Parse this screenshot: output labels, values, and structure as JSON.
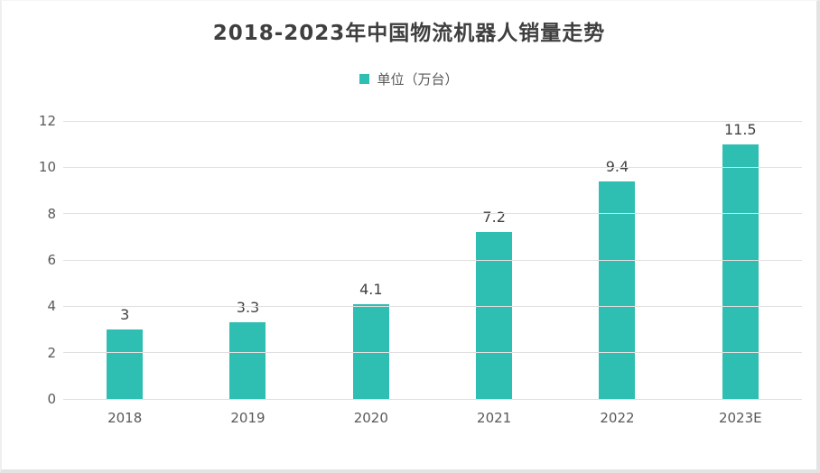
{
  "title": "2018-2023年中国物流机器人销量走势",
  "legend": {
    "label": "单位（万台）",
    "swatch_color": "#2FBEB2"
  },
  "colors": {
    "bar": "#2FBEB2",
    "grid": "#e0e0e0",
    "title_text": "#3f3f3f",
    "axis_text": "#595959",
    "value_label_text": "#404040"
  },
  "chart_data": {
    "type": "bar",
    "title": "2018-2023年中国物流机器人销量走势",
    "legend_entries": [
      "单位（万台）"
    ],
    "legend_position": "top-center",
    "categories": [
      "2018",
      "2019",
      "2020",
      "2021",
      "2022",
      "2023E"
    ],
    "values": [
      3,
      3.3,
      4.1,
      7.2,
      9.4,
      11.5
    ],
    "value_labels": [
      "3",
      "3.3",
      "4.1",
      "7.2",
      "9.4",
      "11.5"
    ],
    "xlabel": "",
    "ylabel": "",
    "ylim": [
      0,
      12
    ],
    "yticks": [
      0,
      2,
      4,
      6,
      8,
      10,
      12
    ],
    "grid": true
  }
}
